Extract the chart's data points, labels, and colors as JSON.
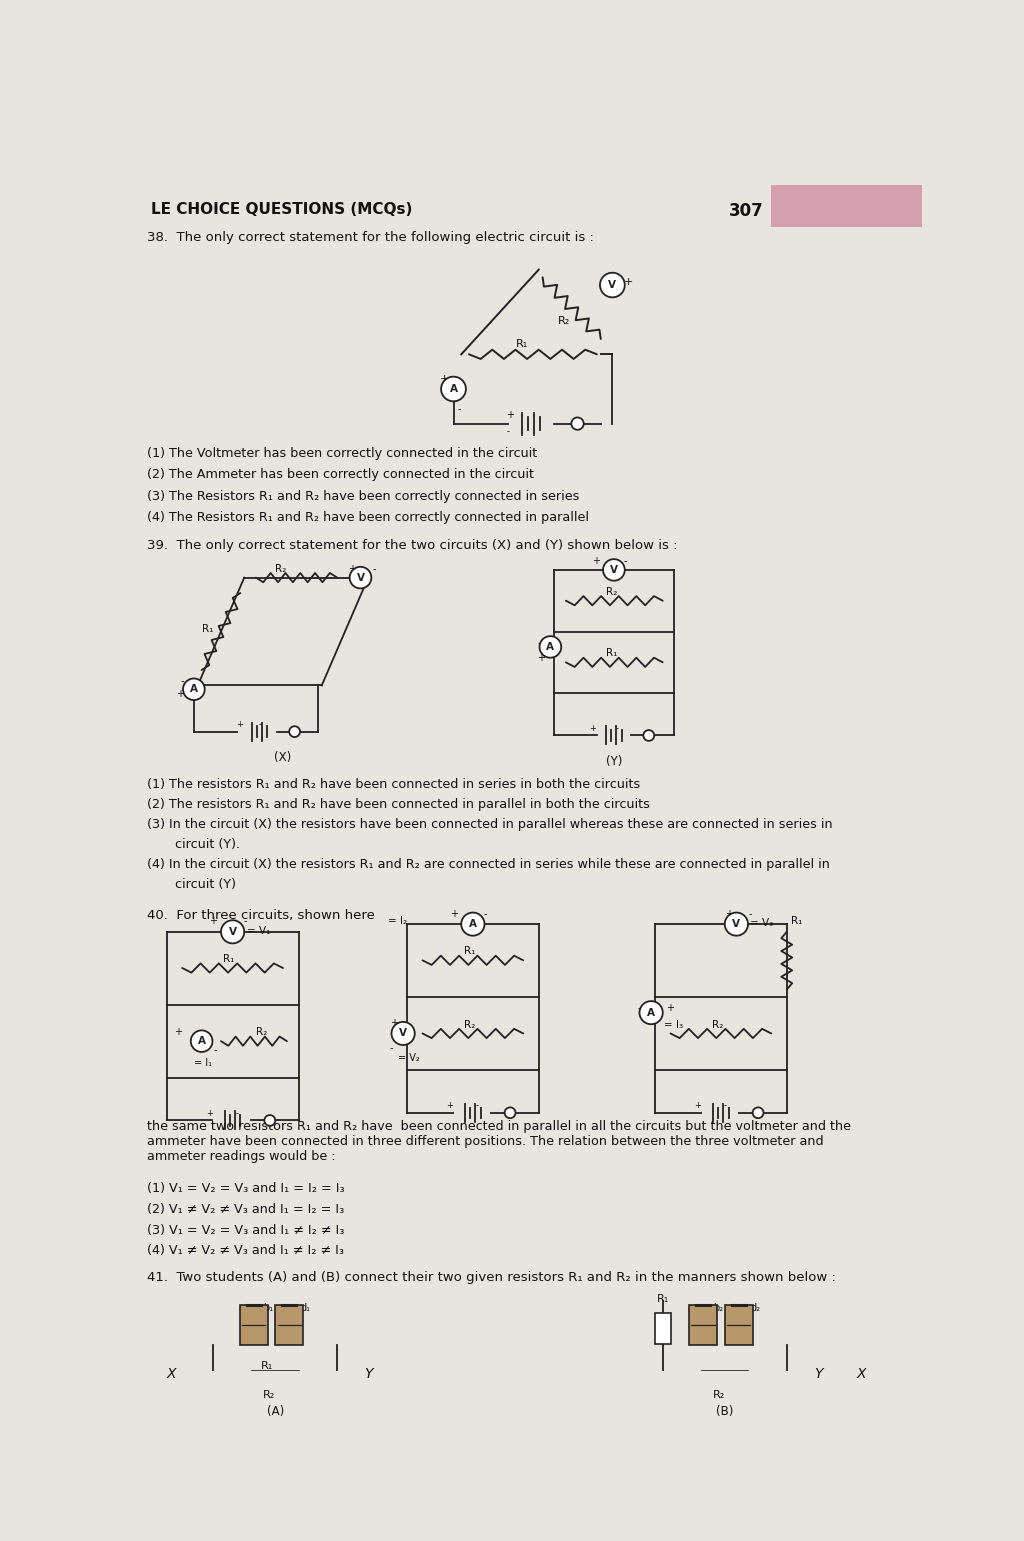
{
  "background_color": "#e8e4de",
  "page_number": "307",
  "header": "LE CHOICE QUESTIONS (MCQs)",
  "q38": "38.  The only correct statement for the following electric circuit is :",
  "q38_opts": [
    "(1) The Voltmeter has been correctly connected in the circuit",
    "(2) The Ammeter has been correctly connected in the circuit",
    "(3) The Resistors R₁ and R₂ have been correctly connected in series",
    "(4) The Resistors R₁ and R₂ have been correctly connected in parallel"
  ],
  "q39": "39.  The only correct statement for the two circuits (X) and (Y) shown below is :",
  "q39_opts": [
    "(1) The resistors R₁ and R₂ have been connected in series in both the circuits",
    "(2) The resistors R₁ and R₂ have been connected in parallel in both the circuits",
    "(3) In the circuit (X) the resistors have been connected in parallel whereas these are connected in series in",
    "       circuit (Y).",
    "(4) In the circuit (X) the resistors R₁ and R₂ are connected in series while these are connected in parallel in",
    "       circuit (Y)"
  ],
  "q40": "40.  For three circuits, shown here",
  "q40_cont": "the same two resistors R₁ and R₂ have  been connected in parallel in all the circuits but the voltmeter and the\nammeter have been connected in three different positions. The relation between the three voltmeter and\nammeter readings would be :",
  "q40_opts": [
    "(1) V₁ = V₂ = V₃ and I₁ = I₂ = I₃",
    "(2) V₁ ≠ V₂ ≠ V₃ and I₁ = I₂ = I₃",
    "(3) V₁ = V₂ = V₃ and I₁ ≠ I₂ ≠ I₃",
    "(4) V₁ ≠ V₂ ≠ V₃ and I₁ ≠ I₂ ≠ I₃"
  ],
  "q41": "41.  Two students (A) and (B) connect their two given resistors R₁ and R₂ in the manners shown below :",
  "lc": "#222222",
  "tc": "#111111",
  "pink": "#d4a0b0"
}
